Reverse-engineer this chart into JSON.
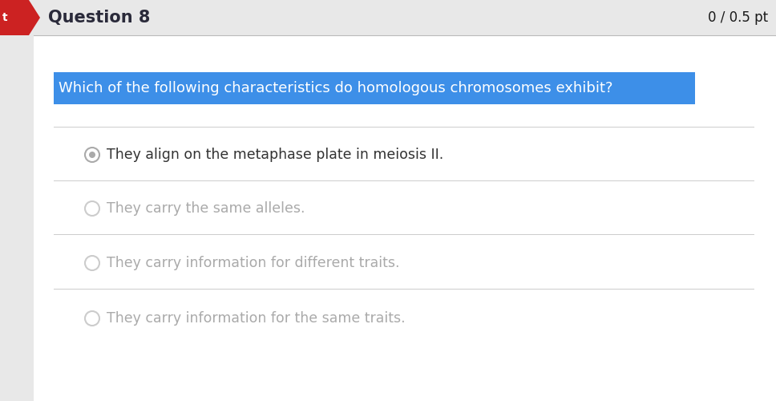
{
  "header_bg": "#e8e8e8",
  "header_text": "Question 8",
  "header_text_color": "#2a2a3a",
  "score_text": "0 / 0.5 pt",
  "score_color": "#1a1a1a",
  "arrow_color": "#cc2222",
  "body_bg": "#ffffff",
  "question_text": "Which of the following characteristics do homologous chromosomes exhibit?",
  "question_highlight_color": "#3d8fe8",
  "question_text_color": "#ffffff",
  "divider_color": "#cccccc",
  "option1_text": "They align on the metaphase plate in meiosis II.",
  "option2_text": "They carry the same alleles.",
  "option3_text": "They carry information for different traits.",
  "option4_text": "They carry information for the same traits.",
  "option1_color": "#333333",
  "option2_color": "#aaaaaa",
  "option3_color": "#aaaaaa",
  "option4_color": "#aaaaaa",
  "radio_selected_outer": "#aaaaaa",
  "radio_selected_inner": "#aaaaaa",
  "radio_unselected": "#cccccc",
  "fig_w": 9.68,
  "fig_h": 5.0,
  "dpi": 100
}
